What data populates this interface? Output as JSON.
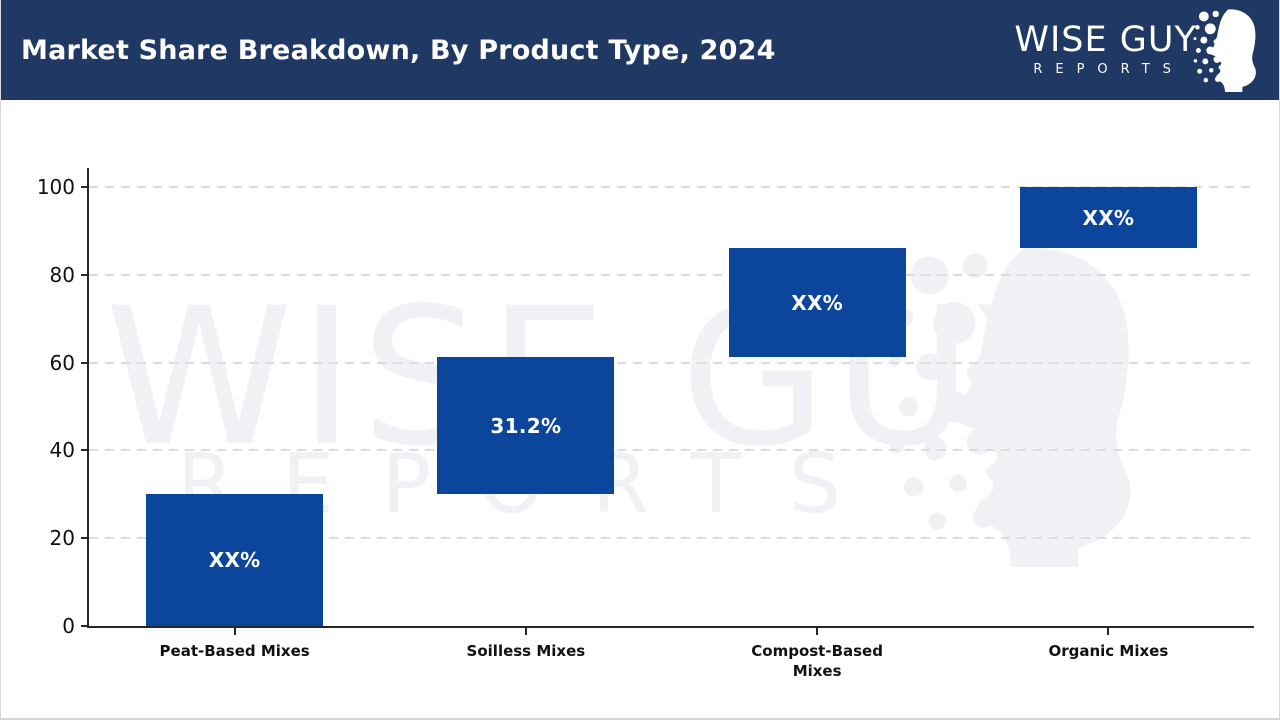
{
  "header": {
    "title": "Market Share Breakdown, By Product Type, 2024",
    "brand": {
      "name": "WISE GUY",
      "sub": "REPORTS"
    }
  },
  "watermark": {
    "line1": "WISE GUY",
    "line2": "REPORTS"
  },
  "chart_data": {
    "type": "bar",
    "subtype": "stacked-step-segments",
    "title": "Market Share Breakdown, By Product Type, 2024",
    "categories": [
      "Peat-Based Mixes",
      "Soilless Mixes",
      "Compost-Based Mixes",
      "Organic Mixes"
    ],
    "category_labels": [
      "Peat-Based Mixes",
      "Soilless Mixes",
      "Compost-Based\nMixes",
      "Organic Mixes"
    ],
    "segments": [
      {
        "category": "Peat-Based Mixes",
        "start": 0,
        "end": 30,
        "value": 30,
        "value_label": "XX%"
      },
      {
        "category": "Soilless Mixes",
        "start": 30,
        "end": 61.2,
        "value": 31.2,
        "value_label": "31.2%"
      },
      {
        "category": "Compost-Based Mixes",
        "start": 61.2,
        "end": 86,
        "value": 24.8,
        "value_label": "XX%"
      },
      {
        "category": "Organic Mixes",
        "start": 86,
        "end": 100,
        "value": 14,
        "value_label": "XX%"
      }
    ],
    "xlabel": "",
    "ylabel": "",
    "ylim": [
      0,
      100
    ],
    "yticks": [
      0,
      20,
      40,
      60,
      80,
      100
    ],
    "grid": true,
    "legend": false,
    "colors": {
      "bar": "#0b459c",
      "bar_label": "#ffffff",
      "axis": "#262626",
      "grid": "#dcdcdc",
      "tick_label": "#111111",
      "category_label": "#111111"
    }
  },
  "theme": {
    "header_bg": "#1f3864",
    "page_bg": "#ffffff",
    "watermark_color": "#eff1f4"
  }
}
